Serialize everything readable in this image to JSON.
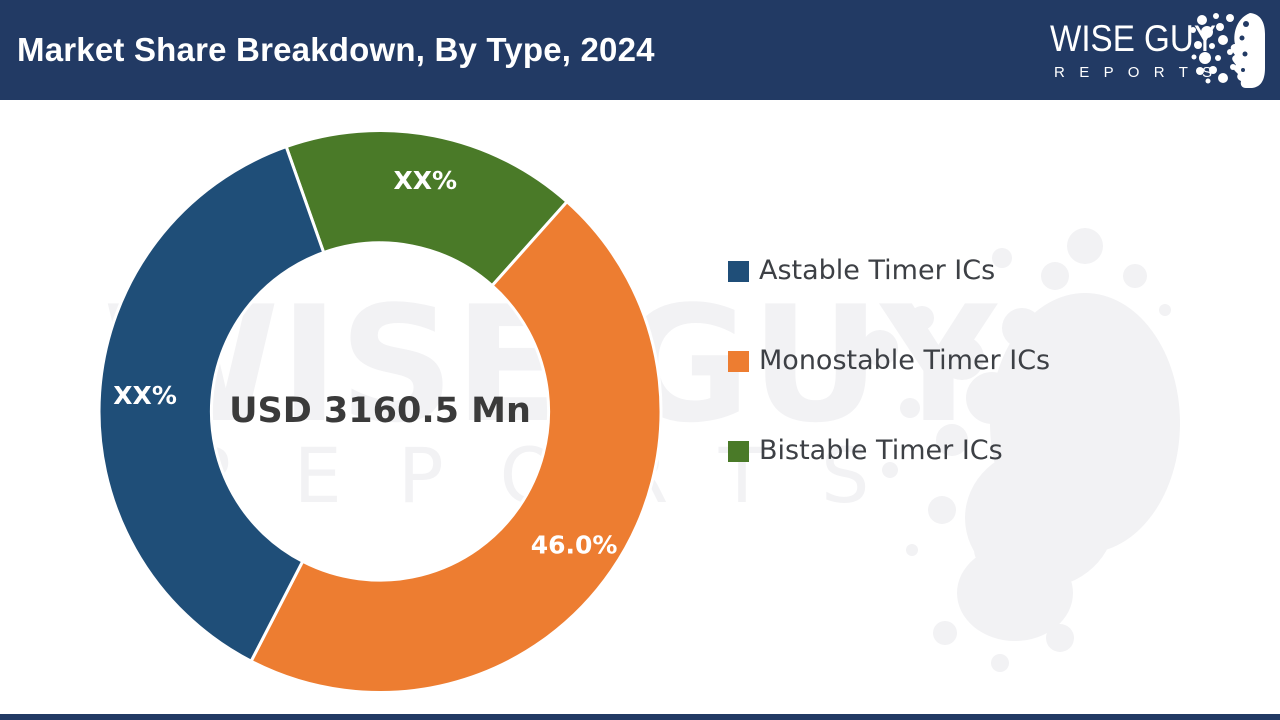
{
  "header": {
    "title": "Market Share Breakdown, By Type, 2024",
    "logo": {
      "line1": "WISE GUY",
      "line2": "R E P O R T S"
    }
  },
  "watermark": {
    "line1": "WISE GUY",
    "line2": "REPORTS"
  },
  "chart_data": {
    "type": "donut",
    "center_label": "USD 3160.5 Mn",
    "start_angle_deg": -19.5,
    "direction": "clockwise",
    "donut_hole_ratio": 0.6,
    "label_radius_ratio": 0.838,
    "outer_radius_px": 281,
    "segments_draw_order": [
      {
        "name": "Bistable Timer ICs",
        "value_pct": 17.0,
        "display_label": "XX%",
        "color": "#4A7A28"
      },
      {
        "name": "Monostable Timer ICs",
        "value_pct": 46.0,
        "display_label": "46.0%",
        "color": "#ED7D31"
      },
      {
        "name": "Astable Timer ICs",
        "value_pct": 37.0,
        "display_label": "XX%",
        "color": "#1F4E78"
      }
    ],
    "legend": [
      {
        "label": "Astable Timer ICs",
        "color": "#1F4E78"
      },
      {
        "label": "Monostable Timer ICs",
        "color": "#ED7D31"
      },
      {
        "label": "Bistable Timer ICs",
        "color": "#4A7A28"
      }
    ],
    "legend_position": "right"
  },
  "colors": {
    "header_bg": "#223A64",
    "footer_bar": "#223A64",
    "astable_blue": "#1F4E78",
    "monostable_orange": "#ED7D31",
    "bistable_green": "#4A7A28",
    "center_text": "#3A3A3A",
    "legend_text": "#3D4045",
    "watermark": "#F2F2F4",
    "wedge_separator": "#FFFFFF"
  }
}
